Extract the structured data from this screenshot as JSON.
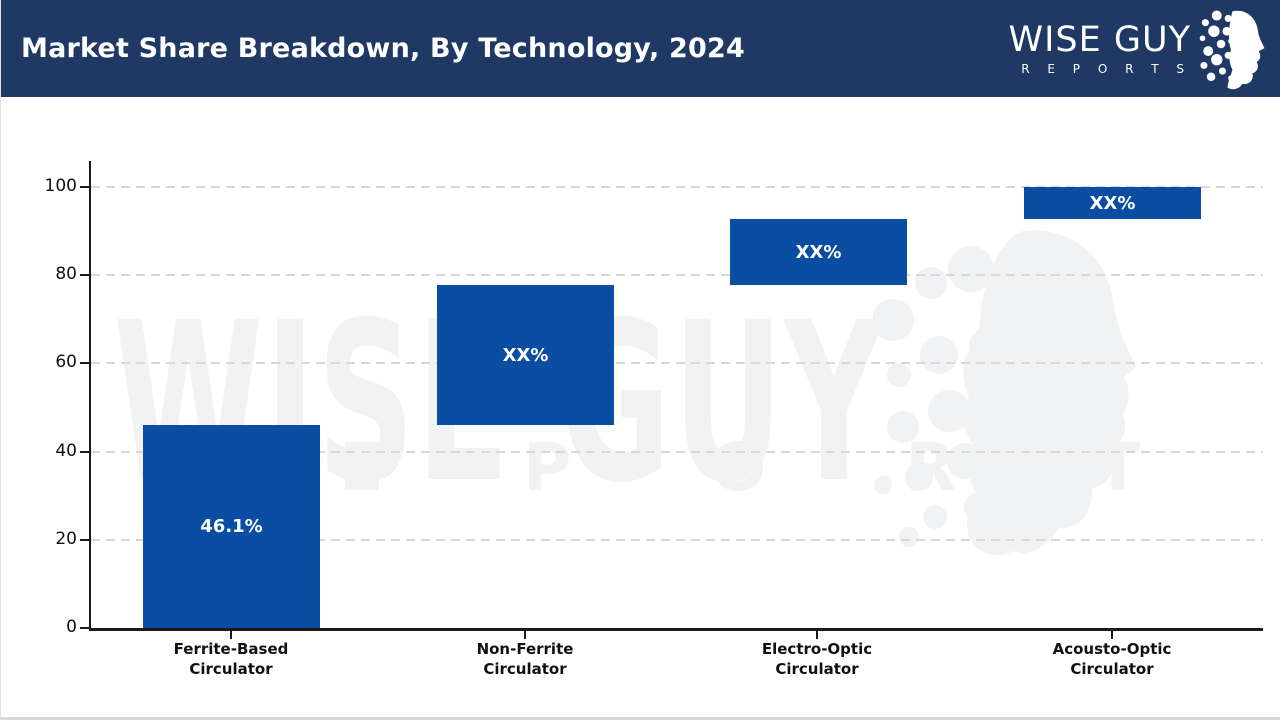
{
  "header": {
    "title": "Market Share Breakdown, By Technology, 2024"
  },
  "logo": {
    "line1": "WISE GUY",
    "line2": "R E P O R T S",
    "face_icon": "face-profile-dots"
  },
  "watermark": {
    "line1": "WISE GUY",
    "line2": "R E P O R T S"
  },
  "chart_data": {
    "type": "bar",
    "subtype": "waterfall",
    "title": "Market Share Breakdown, By Technology, 2024",
    "categories": [
      [
        "Ferrite-Based",
        "Circulator"
      ],
      [
        "Non-Ferrite",
        "Circulator"
      ],
      [
        "Electro-Optic",
        "Circulator"
      ],
      [
        "Acousto-Optic",
        "Circulator"
      ]
    ],
    "segments": [
      {
        "start": 0,
        "end": 46.1,
        "label": "46.1%"
      },
      {
        "start": 46.1,
        "end": 77.7,
        "label": "XX%"
      },
      {
        "start": 77.7,
        "end": 92.7,
        "label": "XX%"
      },
      {
        "start": 92.7,
        "end": 100,
        "label": "XX%"
      }
    ],
    "yticks": [
      0,
      20,
      40,
      60,
      80,
      100
    ],
    "ylim": [
      0,
      104
    ],
    "xlabel": "",
    "ylabel": "",
    "grid": "horizontal-dashed",
    "legend": "none",
    "bar_color": "#0b4da2",
    "value_label_color": "#ffffff"
  },
  "colors": {
    "header_navy": "#1f3864",
    "accent_blue": "#0b4da2",
    "grid": "#d8d8d8",
    "axis": "#1a1a1a",
    "watermark": "#f2f2f2"
  }
}
